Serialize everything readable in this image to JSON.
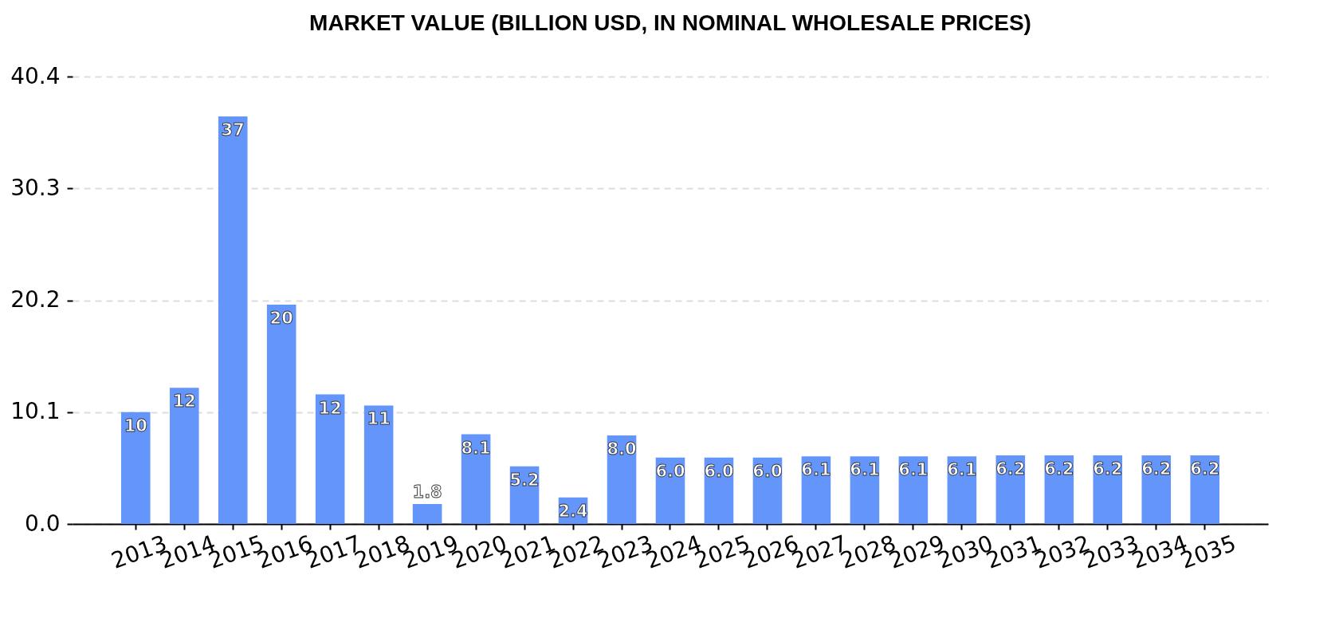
{
  "chart_data": {
    "type": "bar",
    "title": "MARKET VALUE (BILLION USD, IN NOMINAL WHOLESALE PRICES)",
    "categories": [
      "2013",
      "2014",
      "2015",
      "2016",
      "2017",
      "2018",
      "2019",
      "2020",
      "2021",
      "2022",
      "2023",
      "2024",
      "2025",
      "2026",
      "2027",
      "2028",
      "2029",
      "2030",
      "2031",
      "2032",
      "2033",
      "2034",
      "2035"
    ],
    "values": [
      10.1,
      12.3,
      36.8,
      19.8,
      11.7,
      10.7,
      1.8,
      8.1,
      5.2,
      2.4,
      8.0,
      6.0,
      6.0,
      6.0,
      6.1,
      6.1,
      6.1,
      6.1,
      6.2,
      6.2,
      6.2,
      6.2,
      6.2
    ],
    "value_labels": [
      "10",
      "12",
      "37",
      "20",
      "12",
      "11",
      "1.8",
      "8.1",
      "5.2",
      "2.4",
      "8.0",
      "6.0",
      "6.0",
      "6.0",
      "6.1",
      "6.1",
      "6.1",
      "6.1",
      "6.2",
      "6.2",
      "6.2",
      "6.2",
      "6.2"
    ],
    "color": "#6495fa",
    "ylim": [
      0,
      40.4
    ],
    "yticks": [
      {
        "value": 0,
        "label": "0.0"
      },
      10.1,
      20.2,
      30.3,
      40.4
    ],
    "grid": "y"
  }
}
